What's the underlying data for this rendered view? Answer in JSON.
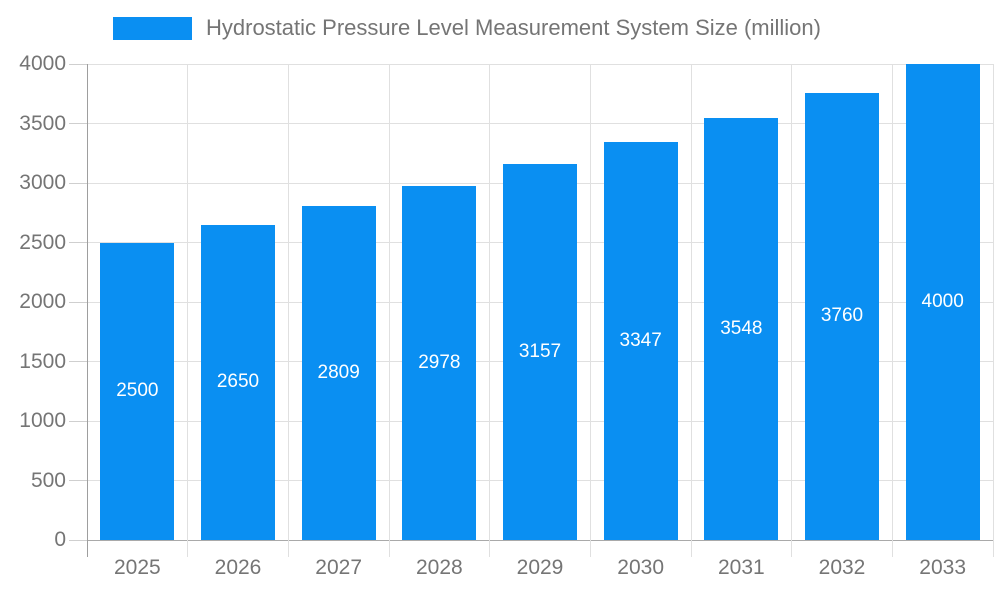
{
  "chart_data": {
    "type": "bar",
    "title": "Hydrostatic Pressure Level Measurement System Size (million)",
    "categories": [
      "2025",
      "2026",
      "2027",
      "2028",
      "2029",
      "2030",
      "2031",
      "2032",
      "2033"
    ],
    "values": [
      2500,
      2650,
      2809,
      2978,
      3157,
      3347,
      3548,
      3760,
      4000
    ],
    "series": [
      {
        "name": "Hydrostatic Pressure Level Measurement System Size (million)",
        "values": [
          2500,
          2650,
          2809,
          2978,
          3157,
          3347,
          3548,
          3760,
          4000
        ]
      }
    ],
    "xlabel": "",
    "ylabel": "",
    "ylim": [
      0,
      4000
    ],
    "ytick_step": 500,
    "ytick_labels": [
      "0",
      "500",
      "1000",
      "1500",
      "2000",
      "2500",
      "3000",
      "3500",
      "4000"
    ],
    "grid": true,
    "legend_position": "top",
    "value_labels": "inside-center"
  },
  "legend": {
    "label": "Hydrostatic Pressure Level Measurement System Size (million)"
  },
  "colors": {
    "bar": "#0a8ff2",
    "value_label_text": "#ffffff",
    "axis_text": "#757575",
    "axis_line": "#9e9e9e",
    "zero_line": "#a9a9a9",
    "gridline": "#e0e0e0",
    "tick": "#cfcfcf"
  }
}
